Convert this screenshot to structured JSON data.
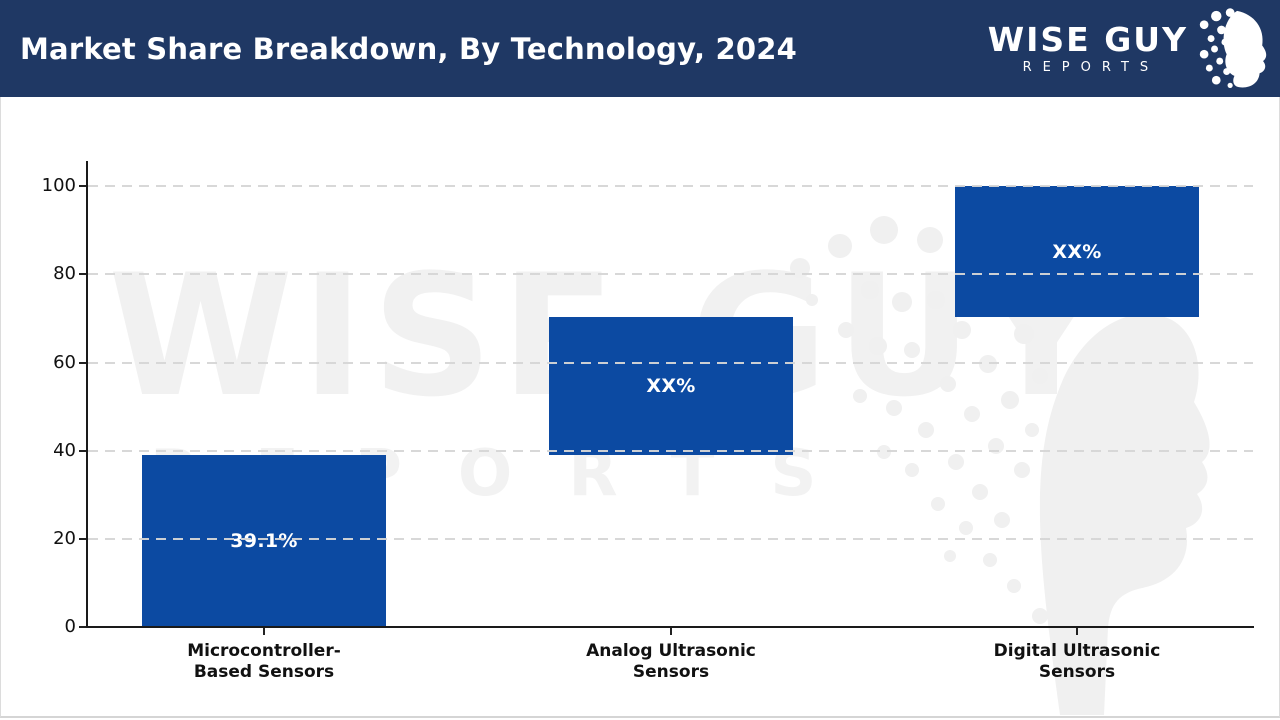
{
  "header": {
    "title": "Market Share Breakdown, By Technology, 2024",
    "brand": {
      "name": "WISE GUY",
      "sub": "REPORTS"
    }
  },
  "watermark": {
    "line1": "WISE GUY",
    "line2": "REPORTS"
  },
  "colors": {
    "header_bg": "#1f3864",
    "bar": "#0c4aa2",
    "grid": "#d6d6d6",
    "axis": "#1a1a1a",
    "watermark": "#f1f1f1"
  },
  "chart_data": {
    "type": "bar",
    "variant": "floating-segment-progression",
    "title": "Market Share Breakdown, By Technology, 2024",
    "categories": [
      "Microcontroller-\nBased Sensors",
      "Analog Ultrasonic\nSensors",
      "Digital Ultrasonic\nSensors"
    ],
    "bars": [
      {
        "category": "Microcontroller-Based Sensors",
        "start": 0,
        "end": 39.1,
        "label": "39.1%"
      },
      {
        "category": "Analog Ultrasonic Sensors",
        "start": 39.1,
        "end": 70.3,
        "label": "XX%"
      },
      {
        "category": "Digital Ultrasonic Sensors",
        "start": 70.3,
        "end": 100,
        "label": "XX%"
      }
    ],
    "xlabel": "",
    "ylabel": "",
    "yticks": [
      0,
      20,
      40,
      60,
      80,
      100
    ],
    "ylim": [
      0,
      105
    ],
    "grid": "dashed-horizontal",
    "legend": null,
    "bar_color": "#0c4aa2"
  }
}
